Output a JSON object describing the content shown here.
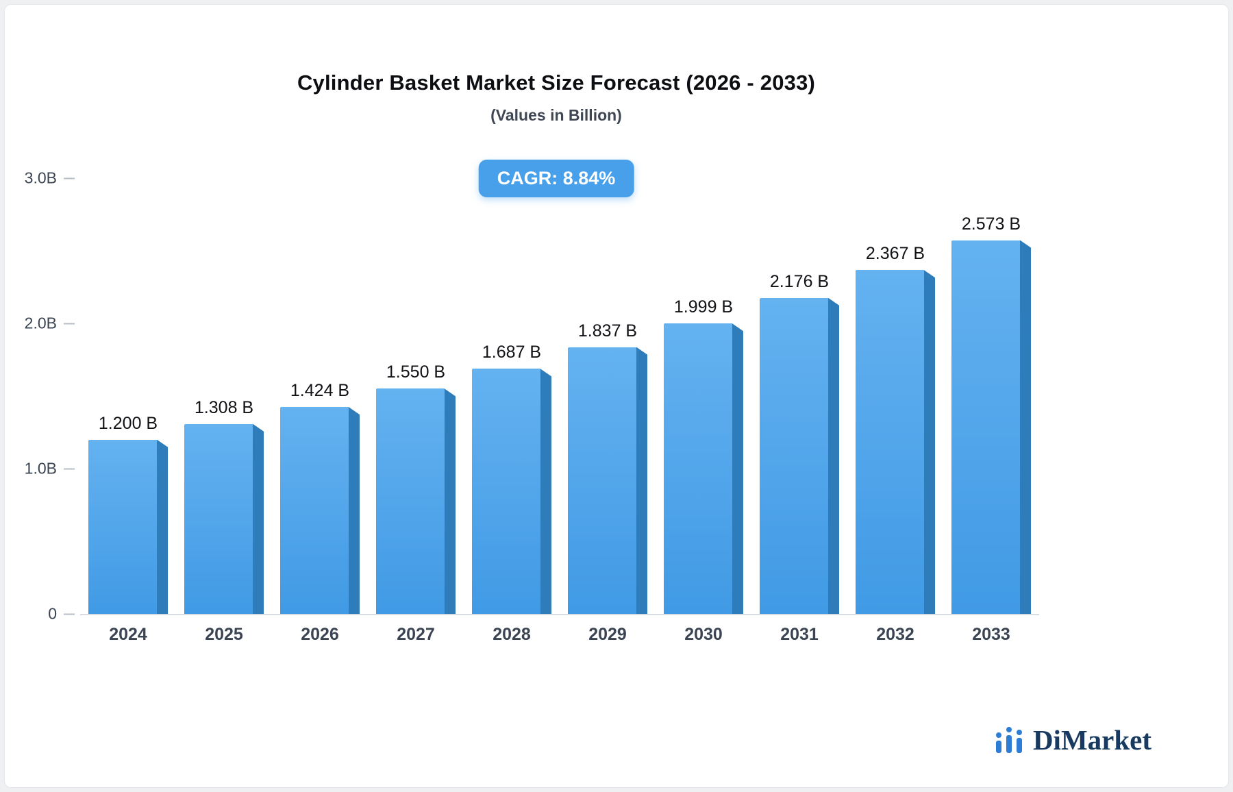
{
  "title": "Cylinder Basket Market Size Forecast (2026 - 2033)",
  "subtitle": "(Values in Billion)",
  "badge_label": "CAGR: 8.84%",
  "logo": {
    "text": "DiMarket",
    "icon": "bar-chart-icon",
    "icon_color": "#2d7dd6",
    "text_color": "#183a60"
  },
  "chart_data": {
    "type": "bar",
    "title": "Cylinder Basket Market Size Forecast (2026 - 2033)",
    "subtitle": "(Values in Billion)",
    "annotation": "CAGR: 8.84%",
    "categories": [
      "2024",
      "2025",
      "2026",
      "2027",
      "2028",
      "2029",
      "2030",
      "2031",
      "2032",
      "2033"
    ],
    "values": [
      1.2,
      1.308,
      1.424,
      1.55,
      1.687,
      1.837,
      1.999,
      2.176,
      2.367,
      2.573
    ],
    "value_labels": [
      "1.200 B",
      "1.308 B",
      "1.424 B",
      "1.550 B",
      "1.687 B",
      "1.837 B",
      "1.999 B",
      "2.176 B",
      "2.367 B",
      "2.573 B"
    ],
    "xlabel": "",
    "ylabel": "",
    "ylim": [
      0,
      3.0
    ],
    "yticks": [
      "0",
      "1.0B",
      "2.0B",
      "3.0B"
    ],
    "grid": false,
    "legend": false,
    "colors": {
      "accent": "#49a0ea",
      "bar_top": "#64b2f0",
      "bar_bottom": "#419ae5",
      "bar_side": "#2f7cba",
      "axis": "#d8dbe0",
      "tick_text": "#3b4452",
      "value_text": "#101216"
    }
  }
}
